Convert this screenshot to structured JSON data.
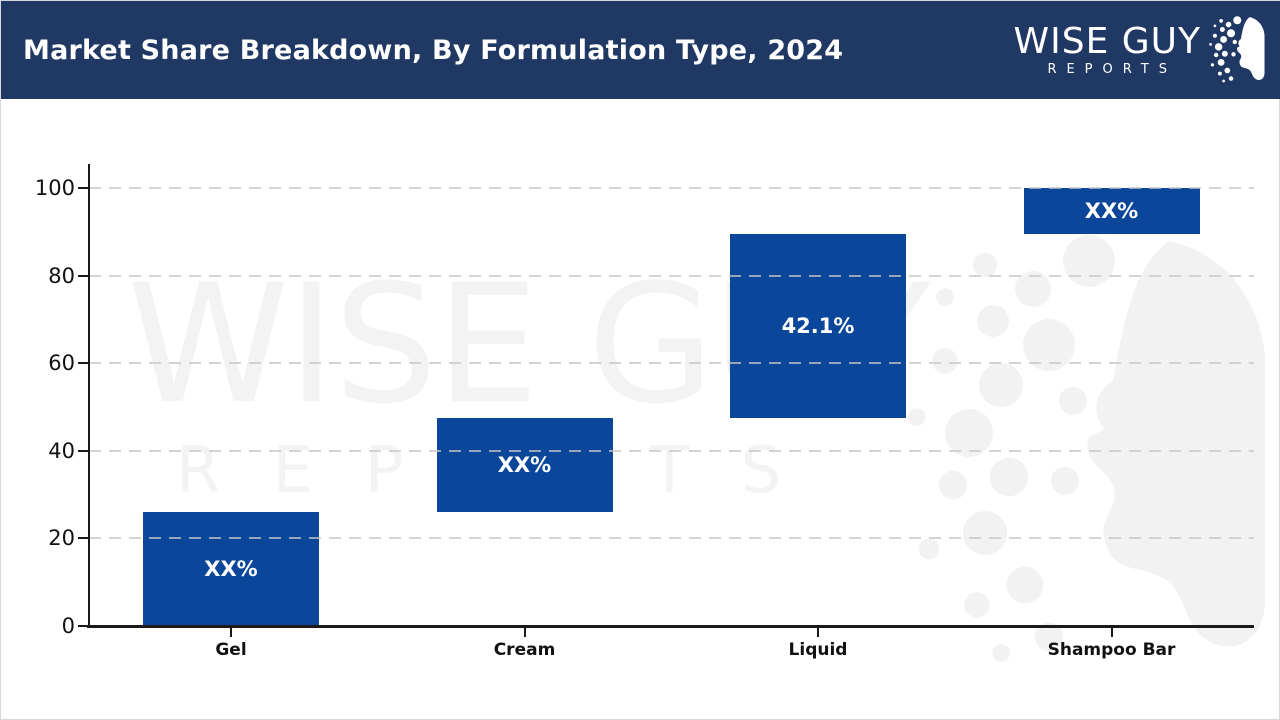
{
  "header": {
    "title": "Market Share Breakdown, By Formulation Type, 2024",
    "logo": {
      "line1": "WISE GUY",
      "line2": "REPORTS"
    }
  },
  "watermark": {
    "line1": "WISE GUY",
    "line2": "REPORTS"
  },
  "colors": {
    "header_bg": "#1F3864",
    "bar": "#0A4699",
    "bar_label": "#ffffff",
    "watermark": "#f2f2f2",
    "gridline": "#c6c6c6",
    "axis": "#1a1a1a"
  },
  "chart_data": {
    "type": "bar",
    "subtype": "waterfall",
    "title": "Market Share Breakdown, By Formulation Type, 2024",
    "categories": [
      "Gel",
      "Cream",
      "Liquid",
      "Shampoo Bar"
    ],
    "segments": [
      {
        "category": "Gel",
        "start": 0,
        "end": 26.0,
        "value_label": "XX%"
      },
      {
        "category": "Cream",
        "start": 26.0,
        "end": 47.4,
        "value_label": "XX%"
      },
      {
        "category": "Liquid",
        "start": 47.4,
        "end": 89.5,
        "value_label": "42.1%"
      },
      {
        "category": "Shampoo Bar",
        "start": 89.5,
        "end": 100.0,
        "value_label": "XX%"
      }
    ],
    "yticks": [
      0,
      20,
      40,
      60,
      80,
      100
    ],
    "ylim": [
      0,
      105
    ],
    "xlabel": "",
    "ylabel": "",
    "grid": "horizontal-dashed",
    "legend": "none",
    "bar_color": "#0A4699",
    "label_color": "#ffffff"
  }
}
